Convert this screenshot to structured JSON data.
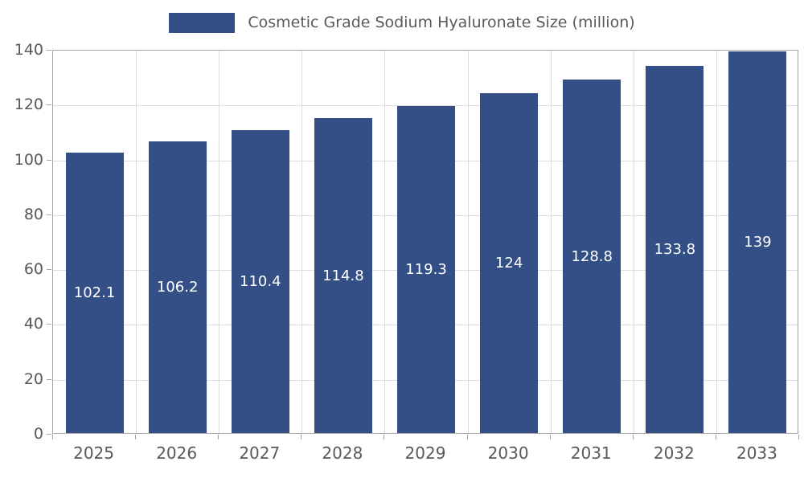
{
  "legend": {
    "title": "Cosmetic Grade Sodium Hyaluronate Size (million)"
  },
  "chart_data": {
    "type": "bar",
    "title": "Cosmetic Grade Sodium Hyaluronate Size (million)",
    "categories": [
      "2025",
      "2026",
      "2027",
      "2028",
      "2029",
      "2030",
      "2031",
      "2032",
      "2033"
    ],
    "values": [
      102.1,
      106.2,
      110.4,
      114.8,
      119.3,
      124,
      128.8,
      133.8,
      139
    ],
    "value_labels": [
      "102.1",
      "106.2",
      "110.4",
      "114.8",
      "119.3",
      "124",
      "128.8",
      "133.8",
      "139"
    ],
    "xlabel": "",
    "ylabel": "",
    "ylim": [
      0,
      140
    ],
    "ytick_interval": 20,
    "ytick_labels": [
      "0",
      "20",
      "40",
      "60",
      "80",
      "100",
      "120",
      "140"
    ],
    "grid": true,
    "legend_position": "top",
    "colors": {
      "bar": "#344E86",
      "bar_label": "#ffffff",
      "grid": "#dcdcdc",
      "axis": "#a3a3a3",
      "tick_text": "#595959"
    }
  }
}
